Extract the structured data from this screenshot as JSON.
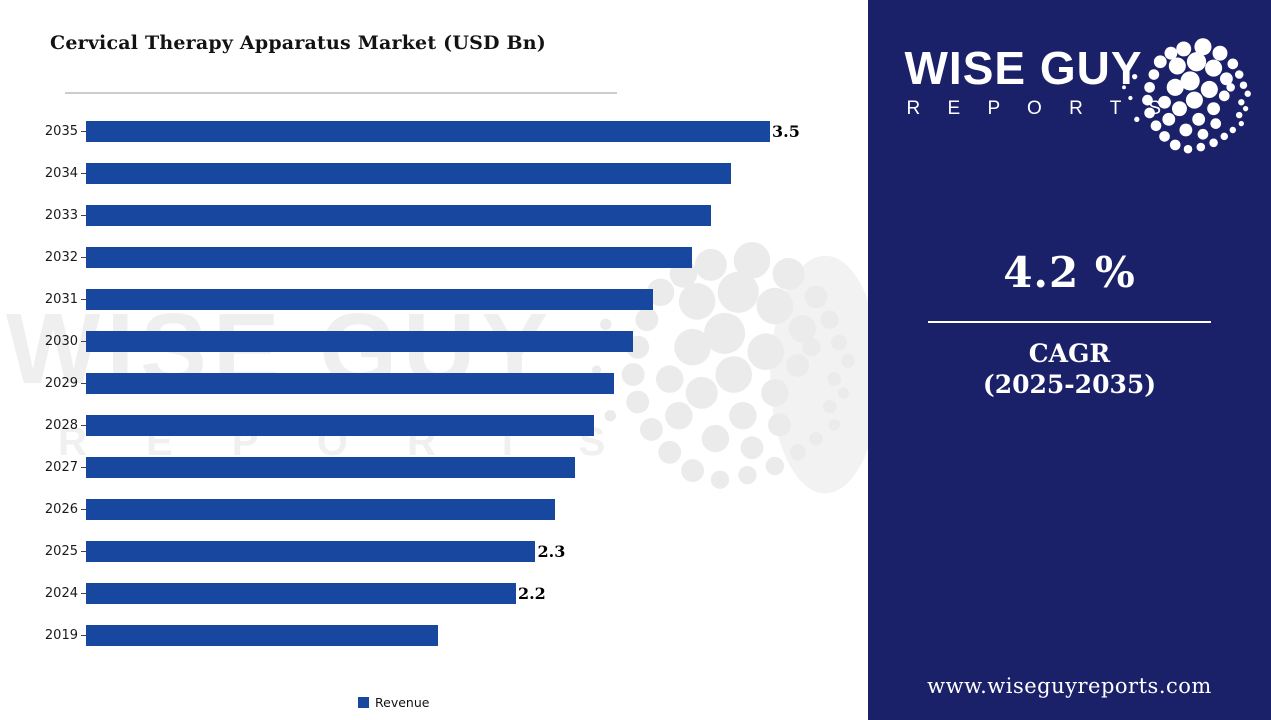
{
  "chart_data": {
    "type": "bar",
    "orientation": "horizontal",
    "title": "Cervical Therapy Apparatus Market (USD Bn)",
    "categories": [
      "2035",
      "2034",
      "2033",
      "2032",
      "2031",
      "2030",
      "2029",
      "2028",
      "2027",
      "2026",
      "2025",
      "2024",
      "2019"
    ],
    "values": [
      3.5,
      3.3,
      3.2,
      3.1,
      2.9,
      2.8,
      2.7,
      2.6,
      2.5,
      2.4,
      2.3,
      2.2,
      1.8
    ],
    "value_labels": [
      "3.5",
      "",
      "",
      "",
      "",
      "",
      "",
      "",
      "",
      "",
      "2.3",
      "2.2",
      ""
    ],
    "xlim": [
      0,
      3.5
    ],
    "grid": false,
    "bar_color": "#17479e",
    "legend": [
      "Revenue"
    ],
    "legend_position": "bottom"
  },
  "watermark": {
    "line1": "WISE GUY",
    "line2": "R E P O R T S"
  },
  "panel": {
    "bg_color": "#1b2168",
    "logo": {
      "line1": "WISE GUY",
      "line2": "R E P O R T S"
    },
    "cagr_value": "4.2 %",
    "cagr_label": "CAGR",
    "cagr_period": "(2025-2035)",
    "website": "www.wiseguyreports.com"
  }
}
